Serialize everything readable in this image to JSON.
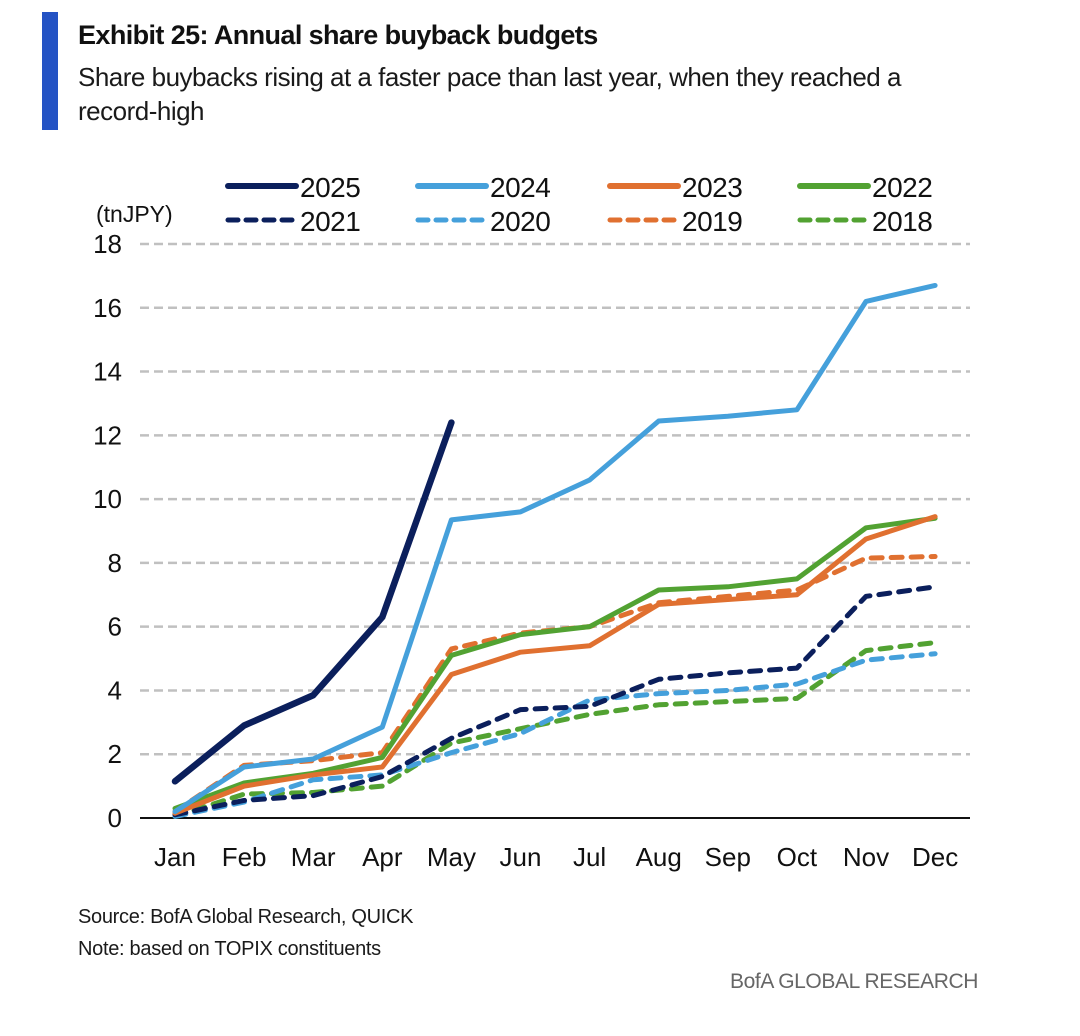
{
  "header": {
    "title": "Exhibit 25: Annual share buyback budgets",
    "subtitle": "Share buybacks rising at a faster pace than last year, when they reached a record-high",
    "accent_color": "#2453c4"
  },
  "footer": {
    "source": "Source: BofA Global Research, QUICK",
    "note": "Note: based on TOPIX constituents",
    "brand": "BofA GLOBAL RESEARCH"
  },
  "chart_data": {
    "type": "line",
    "title": "Annual share buyback budgets",
    "xlabel": "",
    "ylabel": "(tnJPY)",
    "categories": [
      "Jan",
      "Feb",
      "Mar",
      "Apr",
      "May",
      "Jun",
      "Jul",
      "Aug",
      "Sep",
      "Oct",
      "Nov",
      "Dec"
    ],
    "ylim": [
      0,
      18
    ],
    "yticks": [
      "0",
      "2",
      "4",
      "6",
      "8",
      "10",
      "12",
      "14",
      "16",
      "18"
    ],
    "grid": true,
    "legend_position": "top",
    "series": [
      {
        "name": "2025",
        "color": "#0b1f5c",
        "dashed": false,
        "values": [
          1.15,
          2.9,
          3.85,
          6.3,
          12.4,
          null,
          null,
          null,
          null,
          null,
          null,
          null
        ]
      },
      {
        "name": "2024",
        "color": "#45a0db",
        "dashed": false,
        "values": [
          0.2,
          1.6,
          1.85,
          2.85,
          9.35,
          9.6,
          10.6,
          12.45,
          12.6,
          12.8,
          16.2,
          16.7
        ]
      },
      {
        "name": "2023",
        "color": "#e07030",
        "dashed": false,
        "values": [
          0.15,
          1.0,
          1.35,
          1.6,
          4.5,
          5.2,
          5.4,
          6.7,
          6.85,
          7.0,
          8.75,
          9.45
        ]
      },
      {
        "name": "2022",
        "color": "#52a232",
        "dashed": false,
        "values": [
          0.3,
          1.1,
          1.4,
          1.9,
          5.1,
          5.75,
          6.0,
          7.15,
          7.25,
          7.5,
          9.1,
          9.4
        ]
      },
      {
        "name": "2021",
        "color": "#0b1f5c",
        "dashed": true,
        "values": [
          0.1,
          0.55,
          0.7,
          1.3,
          2.5,
          3.4,
          3.5,
          4.35,
          4.55,
          4.7,
          6.95,
          7.25
        ]
      },
      {
        "name": "2020",
        "color": "#45a0db",
        "dashed": true,
        "values": [
          0.05,
          0.5,
          1.2,
          1.35,
          2.05,
          2.65,
          3.7,
          3.9,
          4.0,
          4.2,
          4.95,
          5.15
        ]
      },
      {
        "name": "2019",
        "color": "#e07030",
        "dashed": true,
        "values": [
          0.2,
          1.65,
          1.8,
          2.05,
          5.3,
          5.8,
          6.0,
          6.75,
          6.95,
          7.15,
          8.15,
          8.2
        ]
      },
      {
        "name": "2018",
        "color": "#52a232",
        "dashed": true,
        "values": [
          0.05,
          0.75,
          0.8,
          1.0,
          2.35,
          2.8,
          3.25,
          3.55,
          3.65,
          3.75,
          5.25,
          5.5
        ]
      }
    ]
  }
}
